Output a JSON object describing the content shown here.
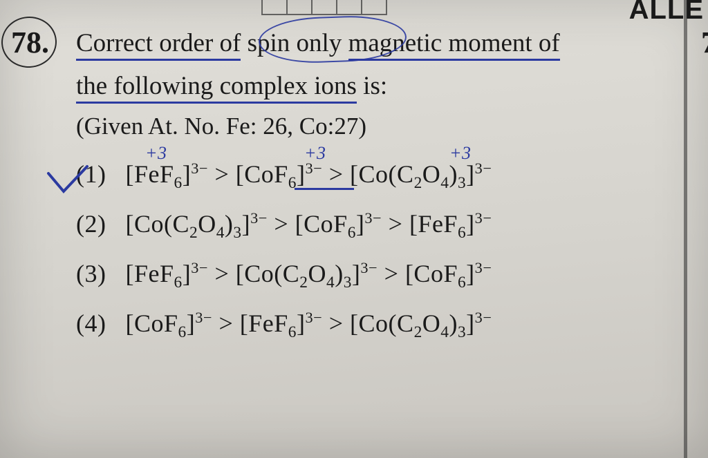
{
  "question_number": "78.",
  "header_label": "ALLE",
  "corner": "7",
  "stem_line1_part1": "Correct order of",
  "stem_line1_emph": " spin only ",
  "stem_line1_part2": "magnetic moment of",
  "stem_line2": "the following complex ions",
  "stem_line2_tail": " is:",
  "given": "(Given At. No. Fe: 26, Co:27)",
  "pen_notes": {
    "a": "+3",
    "b": "+3",
    "c": "+3"
  },
  "options": {
    "1": {
      "num": "(1)",
      "expr": "[FeF<sub>6</sub>]<sup>3−</sup> &gt; [CoF<sub>6</sub>]<sup>3−</sup> &gt; [Co(C<sub>2</sub>O<sub>4</sub>)<sub>3</sub>]<sup>3−</sup>"
    },
    "2": {
      "num": "(2)",
      "expr": "[Co(C<sub>2</sub>O<sub>4</sub>)<sub>3</sub>]<sup>3−</sup> &gt; [CoF<sub>6</sub>]<sup>3−</sup> &gt; [FeF<sub>6</sub>]<sup>3−</sup>"
    },
    "3": {
      "num": "(3)",
      "expr": "[FeF<sub>6</sub>]<sup>3−</sup> &gt; [Co(C<sub>2</sub>O<sub>4</sub>)<sub>3</sub>]<sup>3−</sup> &gt; [CoF<sub>6</sub>]<sup>3−</sup>"
    },
    "4": {
      "num": "(4)",
      "expr": "[CoF<sub>6</sub>]<sup>3−</sup> &gt; [FeF<sub>6</sub>]<sup>3−</sup> &gt; [Co(C<sub>2</sub>O<sub>4</sub>)<sub>3</sub>]<sup>3−</sup>"
    }
  },
  "colors": {
    "ink": "#1a1a1a",
    "pen": "#2b3aa0",
    "paper": "#d8d6d2"
  }
}
